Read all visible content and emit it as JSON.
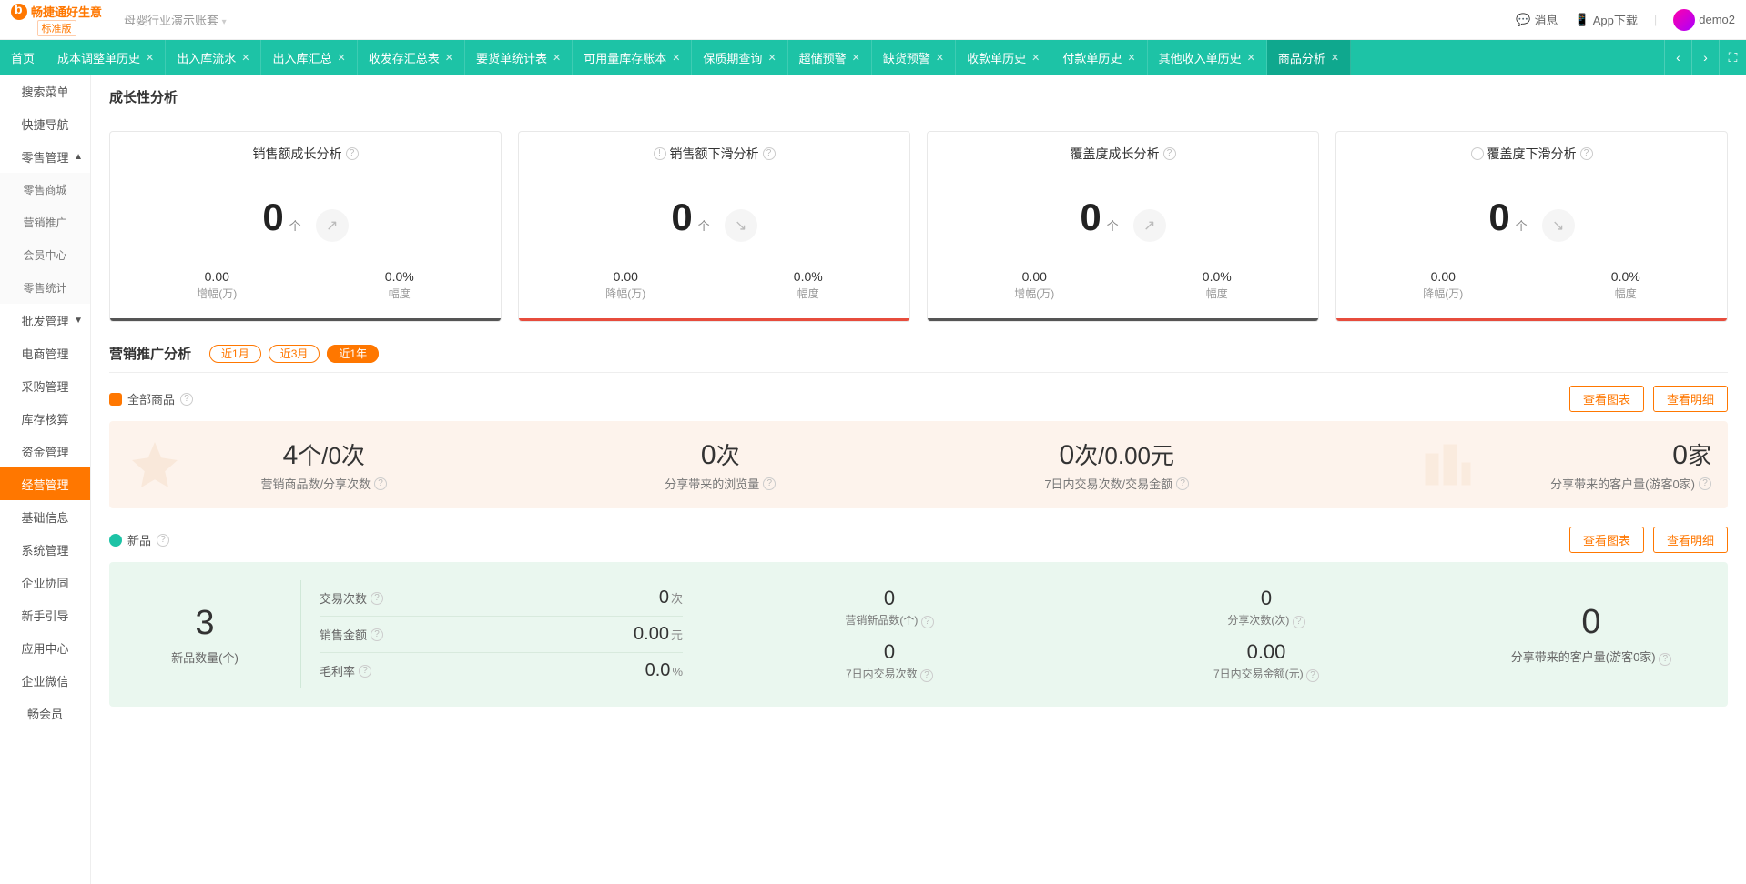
{
  "header": {
    "brand": "畅捷通好生意",
    "brand_sub": "标准版",
    "account": "母婴行业演示账套",
    "messages": "消息",
    "app_download": "App下载",
    "user": "demo2"
  },
  "tabs": [
    {
      "label": "首页",
      "closable": false
    },
    {
      "label": "成本调整单历史",
      "closable": true
    },
    {
      "label": "出入库流水",
      "closable": true
    },
    {
      "label": "出入库汇总",
      "closable": true
    },
    {
      "label": "收发存汇总表",
      "closable": true
    },
    {
      "label": "要货单统计表",
      "closable": true
    },
    {
      "label": "可用量库存账本",
      "closable": true
    },
    {
      "label": "保质期查询",
      "closable": true
    },
    {
      "label": "超储预警",
      "closable": true
    },
    {
      "label": "缺货预警",
      "closable": true
    },
    {
      "label": "收款单历史",
      "closable": true
    },
    {
      "label": "付款单历史",
      "closable": true
    },
    {
      "label": "其他收入单历史",
      "closable": true
    },
    {
      "label": "商品分析",
      "closable": true,
      "active": true
    }
  ],
  "sidebar": [
    {
      "label": "搜索菜单"
    },
    {
      "label": "快捷导航"
    },
    {
      "label": "零售管理",
      "expanded": true,
      "children": [
        "零售商城",
        "营销推广",
        "会员中心",
        "零售统计"
      ]
    },
    {
      "label": "批发管理",
      "caret": true
    },
    {
      "label": "电商管理"
    },
    {
      "label": "采购管理"
    },
    {
      "label": "库存核算"
    },
    {
      "label": "资金管理"
    },
    {
      "label": "经营管理",
      "active": true
    },
    {
      "label": "基础信息"
    },
    {
      "label": "系统管理"
    },
    {
      "label": "企业协同"
    },
    {
      "label": "新手引导"
    },
    {
      "label": "应用中心"
    },
    {
      "label": "企业微信"
    },
    {
      "label": "畅会员"
    }
  ],
  "growth": {
    "title": "成长性分析",
    "cards": [
      {
        "title": "销售额成长分析",
        "num": "0",
        "unit": "个",
        "trend": "up",
        "v1": "0.00",
        "l1": "增幅(万)",
        "v2": "0.0%",
        "l2": "幅度",
        "bottom": "gray"
      },
      {
        "title": "销售额下滑分析",
        "num": "0",
        "unit": "个",
        "trend": "down",
        "v1": "0.00",
        "l1": "降幅(万)",
        "v2": "0.0%",
        "l2": "幅度",
        "bottom": "red",
        "warn": true
      },
      {
        "title": "覆盖度成长分析",
        "num": "0",
        "unit": "个",
        "trend": "up",
        "v1": "0.00",
        "l1": "增幅(万)",
        "v2": "0.0%",
        "l2": "幅度",
        "bottom": "gray"
      },
      {
        "title": "覆盖度下滑分析",
        "num": "0",
        "unit": "个",
        "trend": "down",
        "v1": "0.00",
        "l1": "降幅(万)",
        "v2": "0.0%",
        "l2": "幅度",
        "bottom": "red",
        "warn": true
      }
    ]
  },
  "marketing": {
    "title": "营销推广分析",
    "pills": [
      {
        "label": "近1月",
        "filled": false
      },
      {
        "label": "近3月",
        "filled": false
      },
      {
        "label": "近1年",
        "filled": true
      }
    ],
    "all_products": {
      "header": "全部商品",
      "btn_chart": "查看图表",
      "btn_detail": "查看明细",
      "cells": [
        {
          "big_num": "4",
          "big_suffix": "个/0次",
          "label": "营销商品数/分享次数"
        },
        {
          "big_num": "0",
          "big_suffix": "次",
          "label": "分享带来的浏览量"
        },
        {
          "big_num": "0",
          "big_suffix": "次/0.00元",
          "label": "7日内交易次数/交易金额"
        },
        {
          "big_num": "0",
          "big_suffix": "家",
          "label": "分享带来的客户量(游客0家)"
        }
      ]
    },
    "new_products": {
      "header": "新品",
      "btn_chart": "查看图表",
      "btn_detail": "查看明细",
      "left": {
        "num": "3",
        "label": "新品数量(个)"
      },
      "mid_rows": [
        {
          "label": "交易次数",
          "value": "0",
          "unit": "次"
        },
        {
          "label": "销售金额",
          "value": "0.00",
          "unit": "元"
        },
        {
          "label": "毛利率",
          "value": "0.0",
          "unit": "%"
        }
      ],
      "cols": [
        [
          {
            "v": "0",
            "l": "营销新品数(个)"
          },
          {
            "v": "0",
            "l": "7日内交易次数"
          }
        ],
        [
          {
            "v": "0",
            "l": "分享次数(次)"
          },
          {
            "v": "0.00",
            "l": "7日内交易金额(元)"
          }
        ]
      ],
      "right": {
        "num": "0",
        "label": "分享带来的客户量(游客0家)"
      }
    }
  }
}
